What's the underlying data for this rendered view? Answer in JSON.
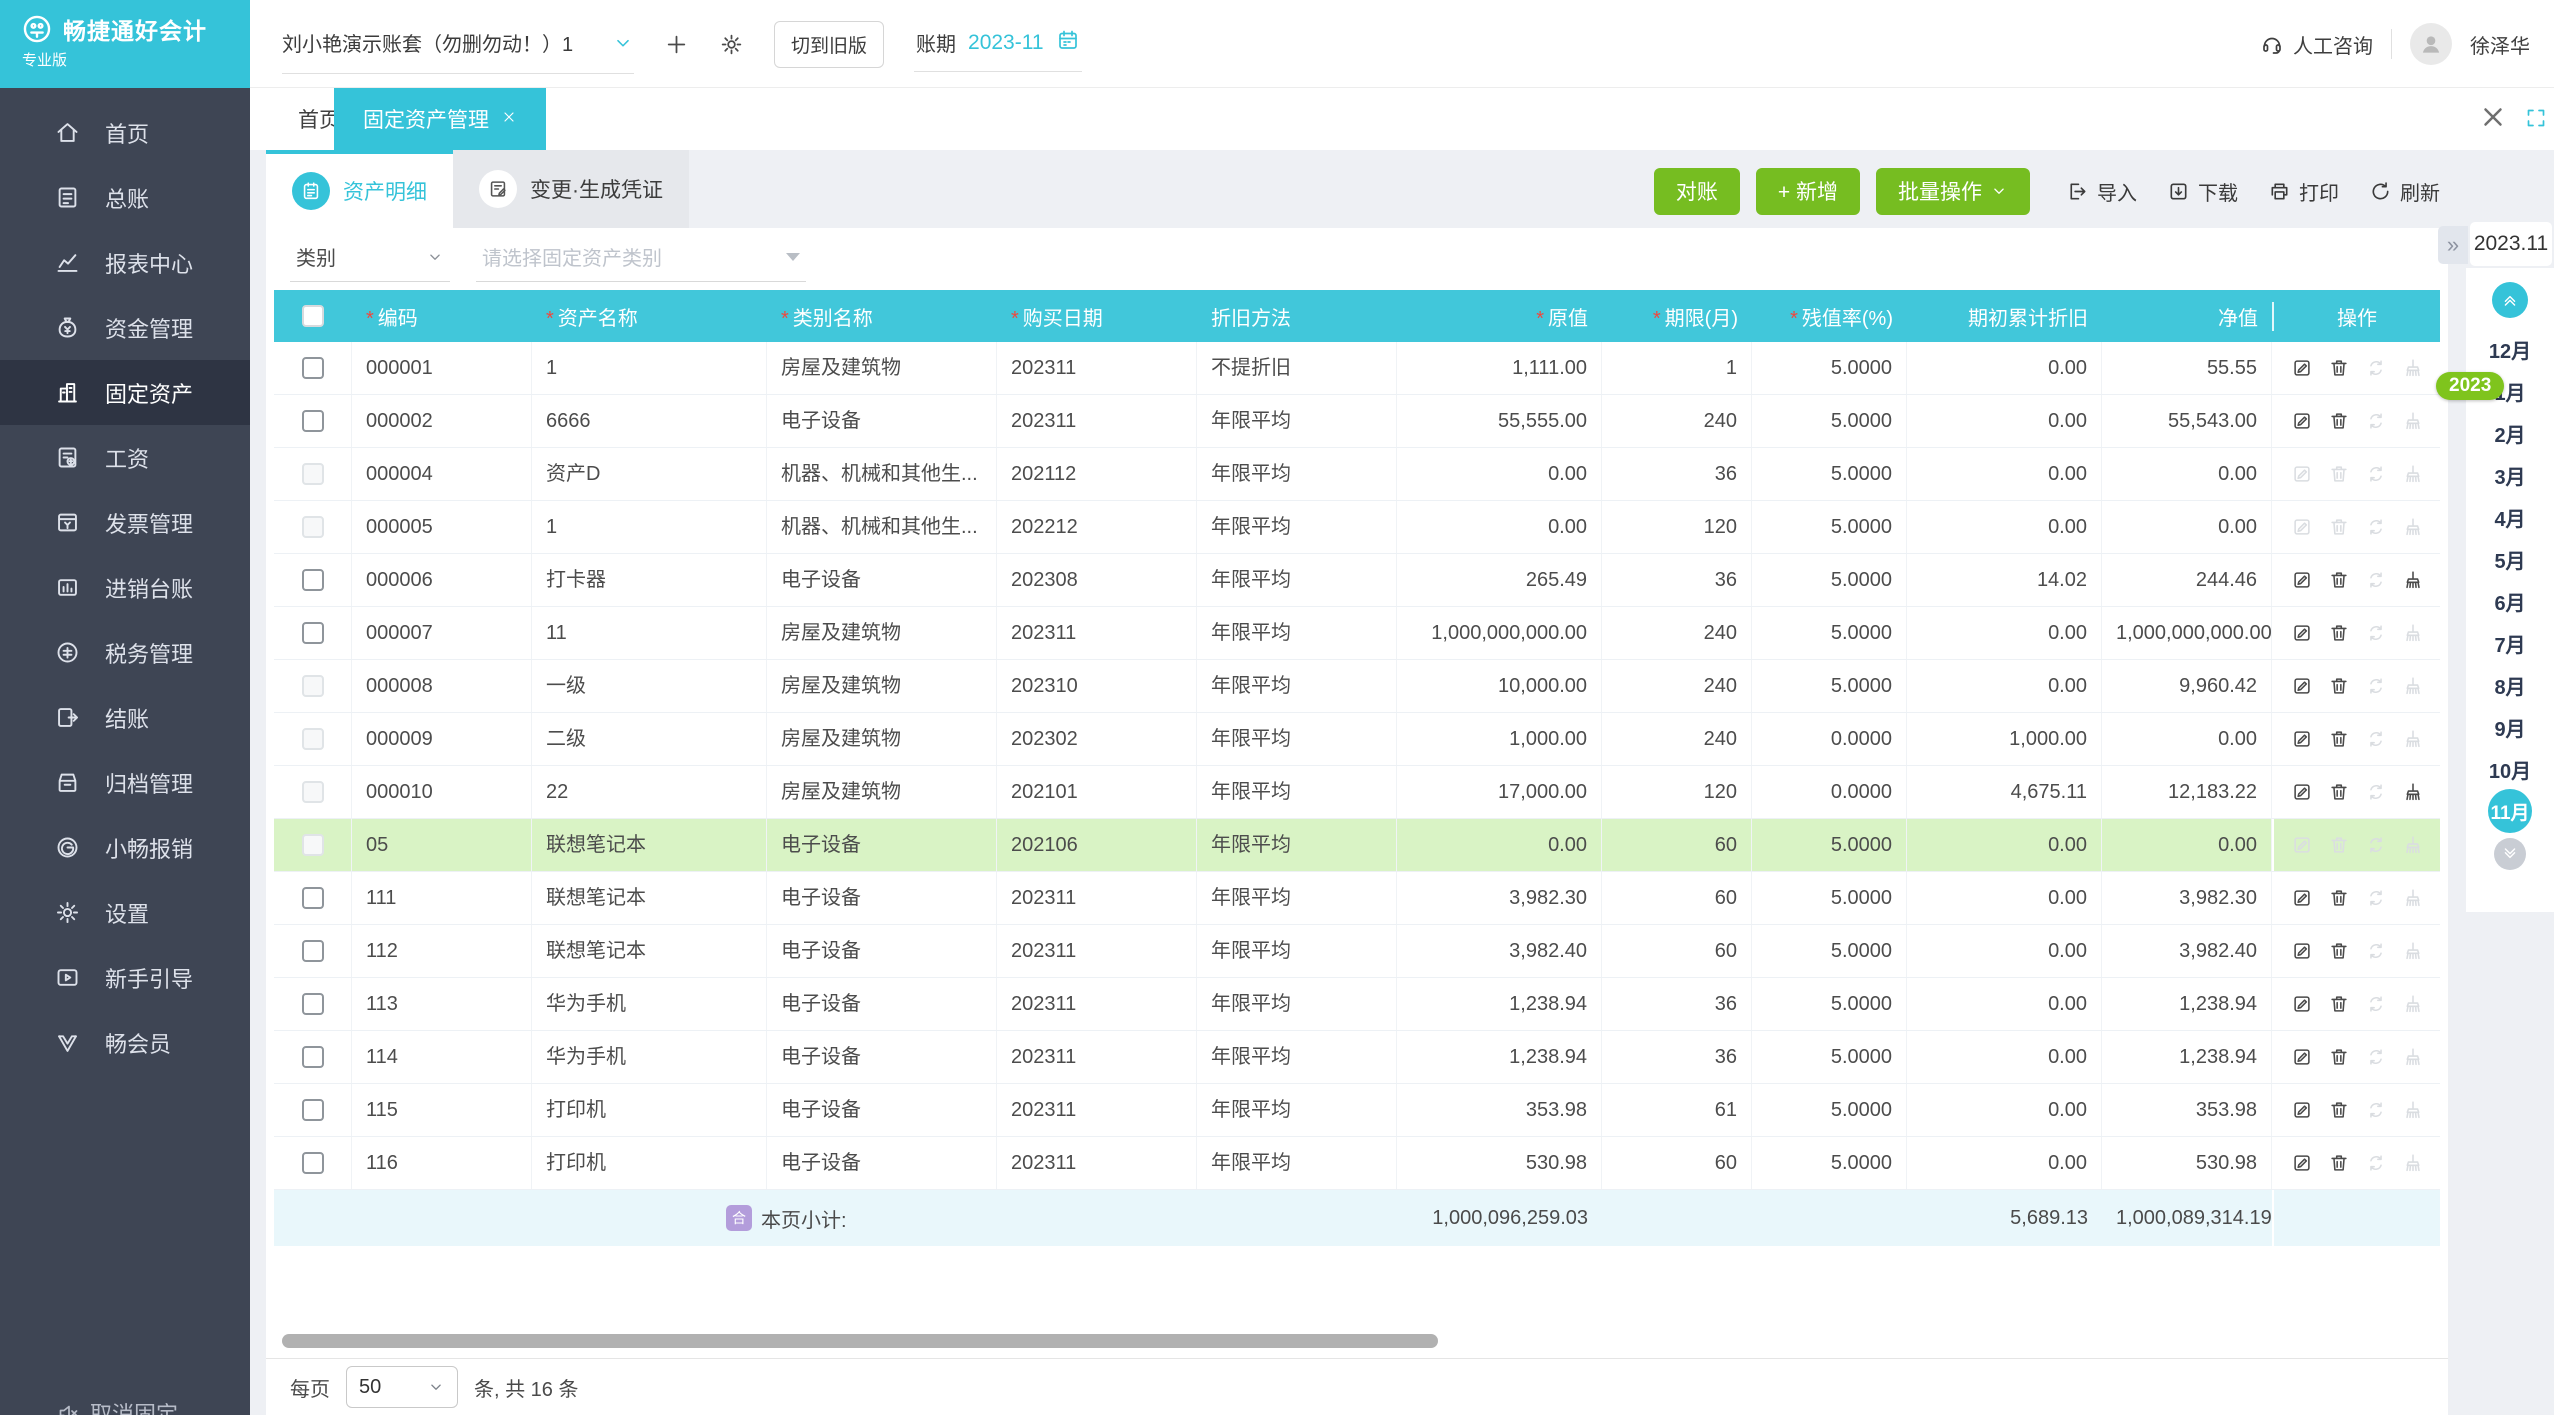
{
  "app": {
    "brand": "畅捷通好会计",
    "edition": "专业版"
  },
  "header": {
    "account_name": "刘小艳演示账套（勿删勿动！）1",
    "switch_old_label": "切到旧版",
    "period_label": "账期",
    "period_value": "2023-11",
    "support_label": "人工咨询",
    "user_name": "徐泽华"
  },
  "sidebar": {
    "items": [
      {
        "id": "home",
        "label": "首页",
        "icon": "home-icon",
        "active": false
      },
      {
        "id": "general-ledger",
        "label": "总账",
        "icon": "ledger-icon",
        "active": false
      },
      {
        "id": "report-center",
        "label": "报表中心",
        "icon": "chart-icon",
        "active": false
      },
      {
        "id": "funds",
        "label": "资金管理",
        "icon": "money-bag-icon",
        "active": false
      },
      {
        "id": "fixed-assets",
        "label": "固定资产",
        "icon": "building-icon",
        "active": true
      },
      {
        "id": "payroll",
        "label": "工资",
        "icon": "salary-icon",
        "active": false
      },
      {
        "id": "invoice-mgmt",
        "label": "发票管理",
        "icon": "invoice-icon",
        "active": false
      },
      {
        "id": "trade-ledger",
        "label": "进销台账",
        "icon": "trade-icon",
        "active": false
      },
      {
        "id": "tax-mgmt",
        "label": "税务管理",
        "icon": "tax-icon",
        "active": false
      },
      {
        "id": "closing",
        "label": "结账",
        "icon": "closing-icon",
        "active": false
      },
      {
        "id": "archive-mgmt",
        "label": "归档管理",
        "icon": "archive-icon",
        "active": false
      },
      {
        "id": "reimburse",
        "label": "小畅报销",
        "icon": "reimburse-icon",
        "active": false
      },
      {
        "id": "settings",
        "label": "设置",
        "icon": "gear-icon",
        "active": false
      },
      {
        "id": "newbie-guide",
        "label": "新手引导",
        "icon": "guide-icon",
        "active": false
      },
      {
        "id": "member",
        "label": "畅会员",
        "icon": "member-icon",
        "active": false
      }
    ],
    "footer_label": "取消固定"
  },
  "tabs": [
    {
      "id": "home",
      "label": "首页",
      "active": false
    },
    {
      "id": "fixed-asset-mgmt",
      "label": "固定资产管理",
      "active": true,
      "closable": true
    }
  ],
  "subtabs": [
    {
      "id": "asset-detail",
      "label": "资产明细",
      "icon": "detail-icon",
      "active": true
    },
    {
      "id": "change-voucher",
      "label": "变更·生成凭证",
      "icon": "voucher-icon",
      "active": false
    }
  ],
  "toolbar": {
    "primary": [
      {
        "id": "reconcile",
        "label": "对账",
        "caret": false
      },
      {
        "id": "add",
        "label": "+ 新增",
        "caret": false
      },
      {
        "id": "batch",
        "label": "批量操作",
        "caret": true
      }
    ],
    "actions": [
      {
        "id": "import",
        "label": "导入",
        "icon": "import-icon"
      },
      {
        "id": "download",
        "label": "下载",
        "icon": "download-icon"
      },
      {
        "id": "print",
        "label": "打印",
        "icon": "print-icon"
      },
      {
        "id": "refresh",
        "label": "刷新",
        "icon": "refresh-icon"
      }
    ]
  },
  "filter": {
    "category_label": "类别",
    "category_placeholder": "请选择固定资产类别"
  },
  "table": {
    "columns": [
      {
        "label": "编码",
        "required": true,
        "align": "left"
      },
      {
        "label": "资产名称",
        "required": true,
        "align": "left"
      },
      {
        "label": "类别名称",
        "required": true,
        "align": "left"
      },
      {
        "label": "购买日期",
        "required": true,
        "align": "left"
      },
      {
        "label": "折旧方法",
        "required": false,
        "align": "left"
      },
      {
        "label": "原值",
        "required": true,
        "align": "right"
      },
      {
        "label": "期限(月)",
        "required": true,
        "align": "right"
      },
      {
        "label": "残值率(%)",
        "required": true,
        "align": "right"
      },
      {
        "label": "期初累计折旧",
        "required": false,
        "align": "right"
      },
      {
        "label": "净值",
        "required": false,
        "align": "right"
      },
      {
        "label": "操作",
        "required": false,
        "align": "center"
      }
    ],
    "rows": [
      {
        "cells": [
          "000001",
          "1",
          "房屋及建筑物",
          "202311",
          "不提折旧",
          "1,111.00",
          "1",
          "5.0000",
          "0.00",
          "55.55"
        ],
        "checkbox_enabled": true,
        "highlight": false,
        "ops": {
          "edit": true,
          "delete": true,
          "swap": false,
          "brush": false
        }
      },
      {
        "cells": [
          "000002",
          "6666",
          "电子设备",
          "202311",
          "年限平均",
          "55,555.00",
          "240",
          "5.0000",
          "0.00",
          "55,543.00"
        ],
        "checkbox_enabled": true,
        "highlight": false,
        "ops": {
          "edit": true,
          "delete": true,
          "swap": false,
          "brush": false
        }
      },
      {
        "cells": [
          "000004",
          "资产D",
          "机器、机械和其他生...",
          "202112",
          "年限平均",
          "0.00",
          "36",
          "5.0000",
          "0.00",
          "0.00"
        ],
        "checkbox_enabled": false,
        "highlight": false,
        "ops": {
          "edit": false,
          "delete": false,
          "swap": false,
          "brush": false
        }
      },
      {
        "cells": [
          "000005",
          "1",
          "机器、机械和其他生...",
          "202212",
          "年限平均",
          "0.00",
          "120",
          "5.0000",
          "0.00",
          "0.00"
        ],
        "checkbox_enabled": false,
        "highlight": false,
        "ops": {
          "edit": false,
          "delete": false,
          "swap": false,
          "brush": false
        }
      },
      {
        "cells": [
          "000006",
          "打卡器",
          "电子设备",
          "202308",
          "年限平均",
          "265.49",
          "36",
          "5.0000",
          "14.02",
          "244.46"
        ],
        "checkbox_enabled": true,
        "highlight": false,
        "ops": {
          "edit": true,
          "delete": true,
          "swap": false,
          "brush": true
        }
      },
      {
        "cells": [
          "000007",
          "11",
          "房屋及建筑物",
          "202311",
          "年限平均",
          "1,000,000,000.00",
          "240",
          "5.0000",
          "0.00",
          "1,000,000,000.00"
        ],
        "checkbox_enabled": true,
        "highlight": false,
        "ops": {
          "edit": true,
          "delete": true,
          "swap": false,
          "brush": false
        }
      },
      {
        "cells": [
          "000008",
          "一级",
          "房屋及建筑物",
          "202310",
          "年限平均",
          "10,000.00",
          "240",
          "5.0000",
          "0.00",
          "9,960.42"
        ],
        "checkbox_enabled": false,
        "highlight": false,
        "ops": {
          "edit": true,
          "delete": true,
          "swap": false,
          "brush": false
        }
      },
      {
        "cells": [
          "000009",
          "二级",
          "房屋及建筑物",
          "202302",
          "年限平均",
          "1,000.00",
          "240",
          "0.0000",
          "1,000.00",
          "0.00"
        ],
        "checkbox_enabled": false,
        "highlight": false,
        "ops": {
          "edit": true,
          "delete": true,
          "swap": false,
          "brush": false
        }
      },
      {
        "cells": [
          "000010",
          "22",
          "房屋及建筑物",
          "202101",
          "年限平均",
          "17,000.00",
          "120",
          "0.0000",
          "4,675.11",
          "12,183.22"
        ],
        "checkbox_enabled": false,
        "highlight": false,
        "ops": {
          "edit": true,
          "delete": true,
          "swap": false,
          "brush": true
        }
      },
      {
        "cells": [
          "05",
          "联想笔记本",
          "电子设备",
          "202106",
          "年限平均",
          "0.00",
          "60",
          "5.0000",
          "0.00",
          "0.00"
        ],
        "checkbox_enabled": false,
        "highlight": true,
        "ops": {
          "edit": false,
          "delete": false,
          "swap": false,
          "brush": false
        }
      },
      {
        "cells": [
          "111",
          "联想笔记本",
          "电子设备",
          "202311",
          "年限平均",
          "3,982.30",
          "60",
          "5.0000",
          "0.00",
          "3,982.30"
        ],
        "checkbox_enabled": true,
        "highlight": false,
        "ops": {
          "edit": true,
          "delete": true,
          "swap": false,
          "brush": false
        }
      },
      {
        "cells": [
          "112",
          "联想笔记本",
          "电子设备",
          "202311",
          "年限平均",
          "3,982.40",
          "60",
          "5.0000",
          "0.00",
          "3,982.40"
        ],
        "checkbox_enabled": true,
        "highlight": false,
        "ops": {
          "edit": true,
          "delete": true,
          "swap": false,
          "brush": false
        }
      },
      {
        "cells": [
          "113",
          "华为手机",
          "电子设备",
          "202311",
          "年限平均",
          "1,238.94",
          "36",
          "5.0000",
          "0.00",
          "1,238.94"
        ],
        "checkbox_enabled": true,
        "highlight": false,
        "ops": {
          "edit": true,
          "delete": true,
          "swap": false,
          "brush": false
        }
      },
      {
        "cells": [
          "114",
          "华为手机",
          "电子设备",
          "202311",
          "年限平均",
          "1,238.94",
          "36",
          "5.0000",
          "0.00",
          "1,238.94"
        ],
        "checkbox_enabled": true,
        "highlight": false,
        "ops": {
          "edit": true,
          "delete": true,
          "swap": false,
          "brush": false
        }
      },
      {
        "cells": [
          "115",
          "打印机",
          "电子设备",
          "202311",
          "年限平均",
          "353.98",
          "61",
          "5.0000",
          "0.00",
          "353.98"
        ],
        "checkbox_enabled": true,
        "highlight": false,
        "ops": {
          "edit": true,
          "delete": true,
          "swap": false,
          "brush": false
        }
      },
      {
        "cells": [
          "116",
          "打印机",
          "电子设备",
          "202311",
          "年限平均",
          "530.98",
          "60",
          "5.0000",
          "0.00",
          "530.98"
        ],
        "checkbox_enabled": true,
        "highlight": false,
        "ops": {
          "edit": true,
          "delete": true,
          "swap": false,
          "brush": false
        }
      }
    ],
    "summary": {
      "label": "本页小计:",
      "icon_text": "合",
      "original": "1,000,096,259.03",
      "accumulated": "5,689.13",
      "net": "1,000,089,314.19"
    }
  },
  "pagination": {
    "per_page_label": "每页",
    "per_page_value": "50",
    "total_label": "条, 共 16 条"
  },
  "calendar": {
    "collapse_handle": "»",
    "current_period": "2023.11",
    "year_badge": "2023",
    "months": [
      "12月",
      "1月",
      "2月",
      "3月",
      "4月",
      "5月",
      "6月",
      "7月",
      "8月",
      "9月",
      "10月",
      "11月"
    ],
    "selected_month": "11月"
  },
  "colors": {
    "accent": "#35c3d9",
    "headerCyan": "#41c7da",
    "green": "#76bd21",
    "pill": "#7fc41d",
    "highlight": "#d9f3c5",
    "summaryBg": "#e9f7fb",
    "sidebar": "#3e4554",
    "sidebarActive": "#2e3443",
    "red": "#f0483e",
    "purple": "#b39ddb"
  }
}
